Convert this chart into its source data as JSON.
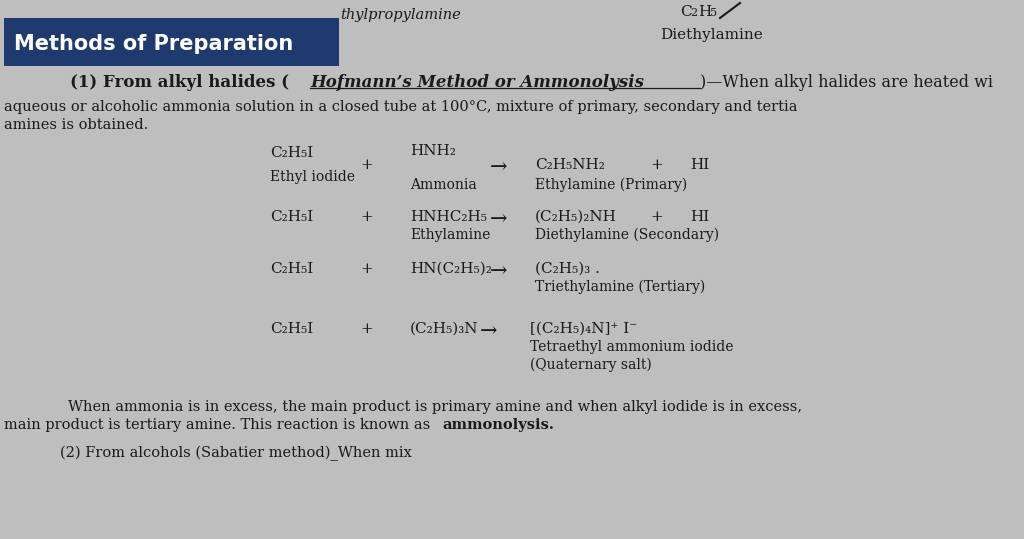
{
  "bg_color": "#b8b8b8",
  "title_bg": "#1e3a6e",
  "title_text": "Methods of Preparation",
  "title_color": "#ffffff",
  "top_left_text": "thylpropylamine",
  "top_right_line1": "C₂H₅",
  "top_right_line2": "Diethylamine",
  "heading1": "(1) From alkyl halides (",
  "heading1_bold_italic": "Hofmann’s Method or Ammonolysis",
  "heading1_close": ")—When alkyl halides are heated wi",
  "body1": "aqueous or alcoholic ammonia solution in a closed tube at 100°C, mixture of primary, secondary and tertia",
  "body2": "amines is obtained.",
  "footer1": "When ammonia is in excess, the main product is primary amine and when alkyl iodide is in excess,",
  "footer2_normal": "main product is tertiary amine. This reaction is known as ",
  "footer2_bold": "ammonolysis.",
  "footer3": "(2) From alcohols (Sabatier method)_When mix"
}
